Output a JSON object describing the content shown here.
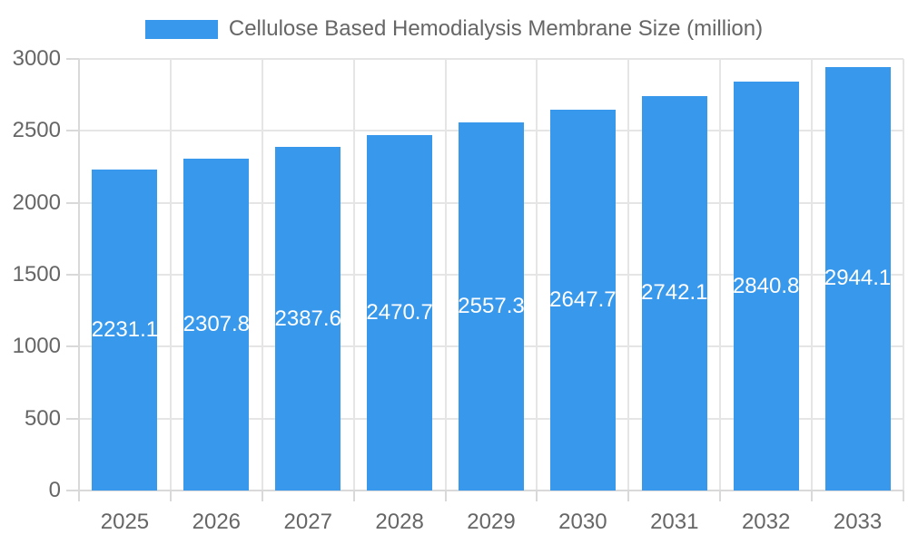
{
  "legend": {
    "label": "Cellulose Based Hemodialysis Membrane Size (million)",
    "swatch_color": "#3899EC"
  },
  "chart_data": {
    "type": "bar",
    "title": "Cellulose Based Hemodialysis Membrane Size (million)",
    "categories": [
      "2025",
      "2026",
      "2027",
      "2028",
      "2029",
      "2030",
      "2031",
      "2032",
      "2033"
    ],
    "values": [
      2231.1,
      2307.8,
      2387.6,
      2470.7,
      2557.3,
      2647.7,
      2742.1,
      2840.8,
      2944.1
    ],
    "value_labels": [
      "2231.1",
      "2307.8",
      "2387.6",
      "2470.7",
      "2557.3",
      "2647.7",
      "2742.1",
      "2840.8",
      "2944.1"
    ],
    "xlabel": "",
    "ylabel": "",
    "ylim": [
      0,
      3000
    ],
    "yticks": [
      0,
      500,
      1000,
      1500,
      2000,
      2500,
      3000
    ],
    "grid": true,
    "legend_position": "top",
    "bar_color": "#3899EC",
    "value_label_color": "#FFFFFF",
    "axis_text_color": "#666666",
    "gridline_color": "#E5E5E5"
  }
}
